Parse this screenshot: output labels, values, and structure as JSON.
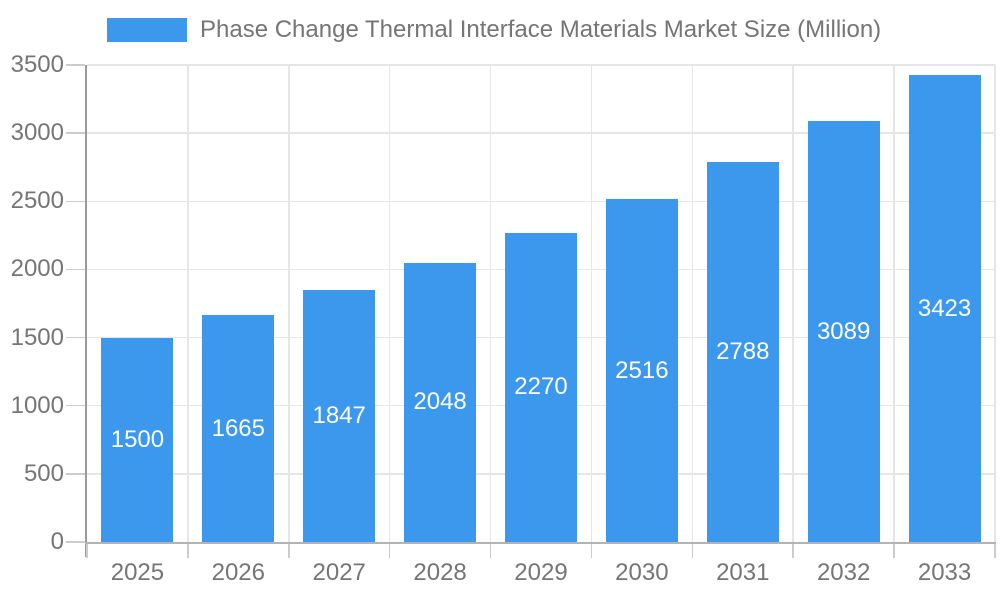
{
  "legend": {
    "label": "Phase Change Thermal Interface Materials Market Size (Million)"
  },
  "chart_data": {
    "type": "bar",
    "title": "Phase Change Thermal Interface Materials Market Size (Million)",
    "categories": [
      "2025",
      "2026",
      "2027",
      "2028",
      "2029",
      "2030",
      "2031",
      "2032",
      "2033"
    ],
    "values": [
      1500,
      1665,
      1847,
      2048,
      2270,
      2516,
      2788,
      3089,
      3423
    ],
    "series": [
      {
        "name": "Phase Change Thermal Interface Materials Market Size (Million)",
        "values": [
          1500,
          1665,
          1847,
          2048,
          2270,
          2516,
          2788,
          3089,
          3423
        ]
      }
    ],
    "xlabel": "",
    "ylabel": "",
    "ylim": [
      0,
      3500
    ],
    "yticks": [
      0,
      500,
      1000,
      1500,
      2000,
      2500,
      3000,
      3500
    ],
    "grid": true,
    "legend_position": "top",
    "value_labels": "inside-center",
    "colors": {
      "bar": "#3B98EC",
      "value_label": "#ffffff",
      "axis_text": "#757575",
      "gridline": "#e6e6e6",
      "axis_line_x": "#b3b3b3",
      "axis_line_y": "#9b9b9b",
      "tick_mark": "#cccccc",
      "background": "#ffffff"
    }
  }
}
